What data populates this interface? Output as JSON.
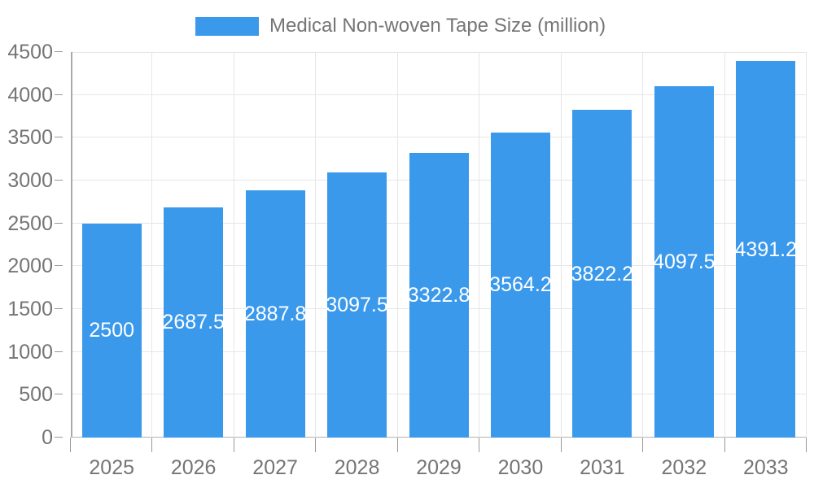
{
  "legend": {
    "label": "Medical Non-woven Tape Size (million)"
  },
  "chart_data": {
    "type": "bar",
    "title": "Medical Non-woven Tape Size (million)",
    "categories": [
      "2025",
      "2026",
      "2027",
      "2028",
      "2029",
      "2030",
      "2031",
      "2032",
      "2033"
    ],
    "values": [
      2500,
      2687.5,
      2887.8,
      3097.5,
      3322.8,
      3564.2,
      3822.2,
      4097.5,
      4391.2
    ],
    "value_labels": [
      "2500",
      "2687.5",
      "2887.8",
      "3097.5",
      "3322.8",
      "3564.2",
      "3822.2",
      "4097.5",
      "4391.2"
    ],
    "xlabel": "",
    "ylabel": "",
    "ylim": [
      0,
      4500
    ],
    "ytick_step": 500,
    "ytick_labels": [
      "0",
      "500",
      "1000",
      "1500",
      "2000",
      "2500",
      "3000",
      "3500",
      "4000",
      "4500"
    ],
    "grid": true,
    "legend_position": "top",
    "bar_color": "#3B99EC",
    "value_label_color": "#FFFFFF",
    "axis_text_color": "#757575",
    "gridline_color": "#E6E6E6",
    "axis_line_color": "#A9A9A9",
    "zero_line_color": "#B3B3B3",
    "tick_color": "#999999",
    "background_color": "#FFFFFF"
  }
}
